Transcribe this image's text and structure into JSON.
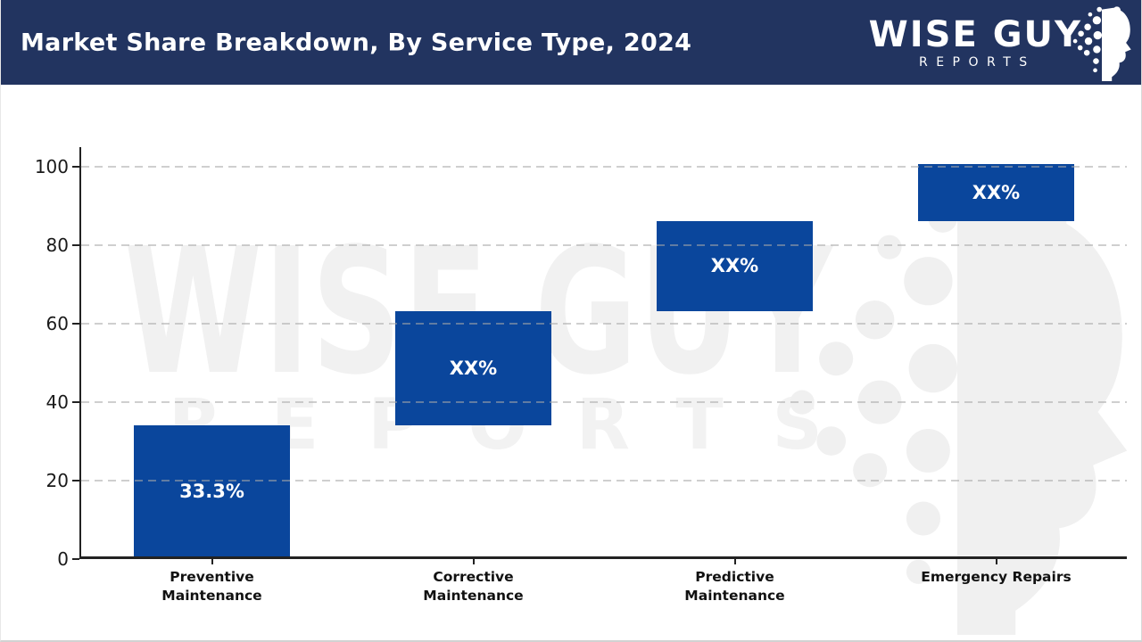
{
  "header": {
    "title": "Market Share Breakdown, By Service Type, 2024",
    "bg_color": "#223460",
    "logo": {
      "name": "WISE GUY",
      "sub": "REPORTS"
    }
  },
  "watermark": {
    "big_text": "WISE GUY",
    "sub_text": "REPORTS"
  },
  "chart_data": {
    "type": "bar",
    "variant": "waterfall",
    "title": "Market Share Breakdown, By Service Type, 2024",
    "xlabel": "",
    "ylabel": "",
    "ylim": [
      0,
      105
    ],
    "yticks": [
      0,
      20,
      40,
      60,
      80,
      100
    ],
    "grid": "horizontal-dashed",
    "legend": "none",
    "bar_color": "#0a469c",
    "value_label_color": "#ffffff",
    "categories": [
      "Preventive Maintenance",
      "Corrective Maintenance",
      "Predictive Maintenance",
      "Emergency Repairs"
    ],
    "category_label_lines": [
      [
        "Preventive",
        "Maintenance"
      ],
      [
        "Corrective",
        "Maintenance"
      ],
      [
        "Predictive",
        "Maintenance"
      ],
      [
        "Emergency Repairs"
      ]
    ],
    "segments": [
      {
        "category": "Preventive Maintenance",
        "start": 0,
        "end": 33.3,
        "value_label": "33.3%"
      },
      {
        "category": "Corrective Maintenance",
        "start": 33.3,
        "end": 62.5,
        "value_label": "XX%"
      },
      {
        "category": "Predictive Maintenance",
        "start": 62.5,
        "end": 85.5,
        "value_label": "XX%"
      },
      {
        "category": "Emergency Repairs",
        "start": 85.5,
        "end": 100,
        "value_label": "XX%"
      }
    ]
  }
}
